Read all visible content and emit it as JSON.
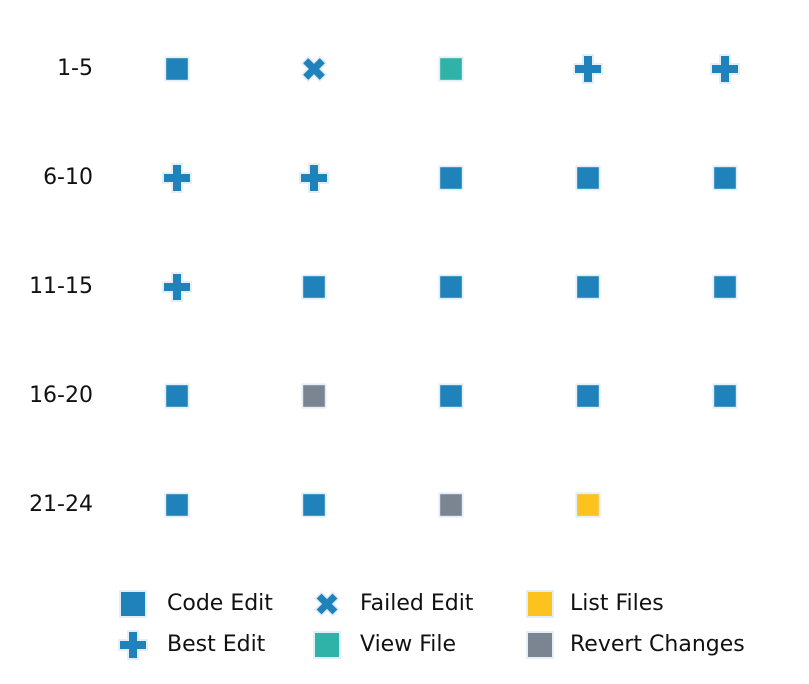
{
  "chart_data": {
    "type": "scatter",
    "title": "",
    "xlabel": "",
    "ylabel": "",
    "grid": false,
    "description": "Grid of action-type markers per step range; rows are step ranges, each row holds up to 5 action slots",
    "row_labels": [
      "1-5",
      "6-10",
      "11-15",
      "16-20",
      "21-24"
    ],
    "rows": [
      [
        "code_edit",
        "failed_edit",
        "view_file",
        "best_edit",
        "best_edit"
      ],
      [
        "best_edit",
        "best_edit",
        "code_edit",
        "code_edit",
        "code_edit"
      ],
      [
        "best_edit",
        "code_edit",
        "code_edit",
        "code_edit",
        "code_edit"
      ],
      [
        "code_edit",
        "revert_changes",
        "code_edit",
        "code_edit",
        "code_edit"
      ],
      [
        "code_edit",
        "code_edit",
        "revert_changes",
        "list_files",
        null
      ]
    ],
    "legend_position": "lower center",
    "legend": [
      {
        "key": "code_edit",
        "label": "Code Edit",
        "marker": "square",
        "color": "#1f82ba"
      },
      {
        "key": "failed_edit",
        "label": "Failed Edit",
        "marker": "x",
        "color": "#1f82ba"
      },
      {
        "key": "list_files",
        "label": "List Files",
        "marker": "square",
        "color": "#fcc21d"
      },
      {
        "key": "best_edit",
        "label": "Best Edit",
        "marker": "plus",
        "color": "#1f82ba"
      },
      {
        "key": "view_file",
        "label": "View File",
        "marker": "square",
        "color": "#2fb3a9"
      },
      {
        "key": "revert_changes",
        "label": "Revert Changes",
        "marker": "square",
        "color": "#7b8591"
      }
    ],
    "colors": {
      "blue": "#1f82ba",
      "teal": "#2fb3a9",
      "yellow": "#fcc21d",
      "gray": "#7b8591",
      "marker_edge": "#e4eef7",
      "text": "#111111",
      "background": "#ffffff"
    }
  }
}
